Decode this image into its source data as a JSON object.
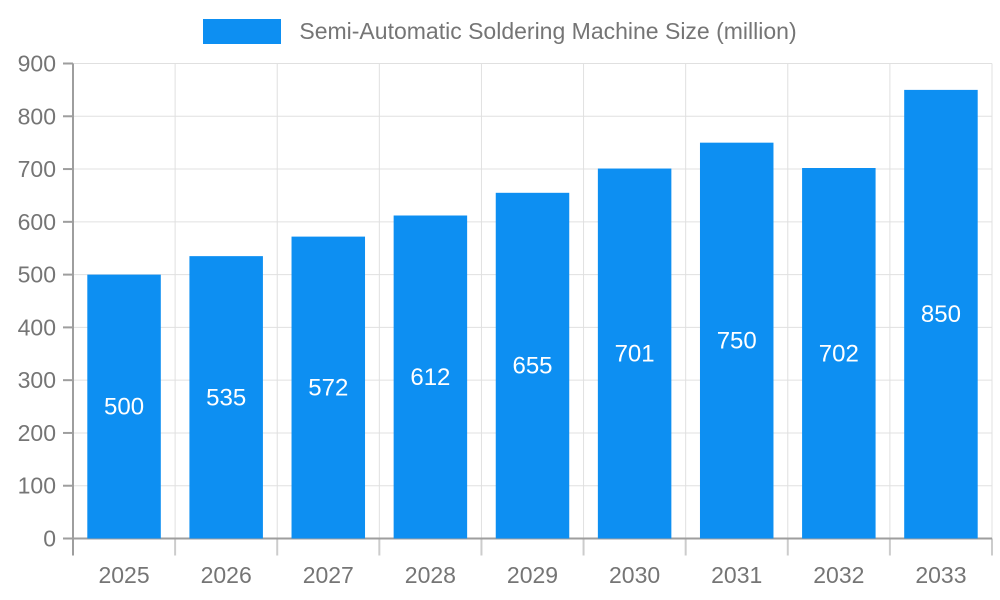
{
  "chart_data": {
    "type": "bar",
    "title": "Semi-Automatic Soldering Machine Size (million)",
    "legend": {
      "label": "Semi-Automatic Soldering Machine Size (million)",
      "position": "top"
    },
    "categories": [
      "2025",
      "2026",
      "2027",
      "2028",
      "2029",
      "2030",
      "2031",
      "2032",
      "2033"
    ],
    "values": [
      500,
      535,
      572,
      612,
      655,
      701,
      750,
      702,
      850
    ],
    "xlabel": "",
    "ylabel": "",
    "ylim": [
      0,
      900
    ],
    "ytick_step": 100,
    "grid": true,
    "value_labels": "centered-inside-bars",
    "colors": {
      "bar": "#0D8FF2",
      "axis_line": "#9E9E9E",
      "grid_line": "#E0E0E0",
      "bottom_tick": "#CCCCCC",
      "axis_text": "#757575",
      "value_label_text": "#FFFFFF",
      "background": "#FFFFFF"
    }
  }
}
